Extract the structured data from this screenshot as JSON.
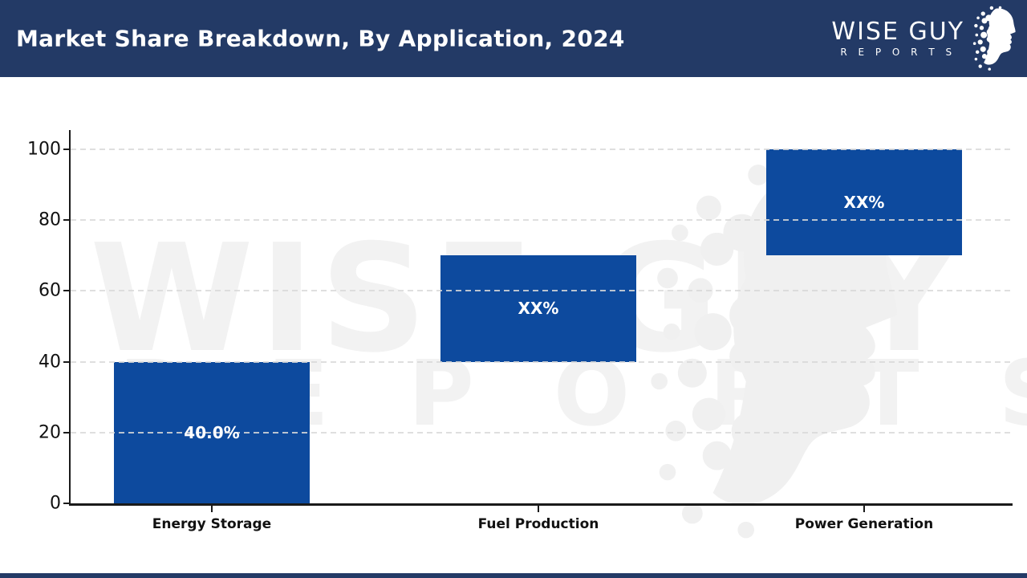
{
  "header": {
    "title": "Market Share Breakdown, By Application, 2024",
    "logo": {
      "brand_line1": "WISE GUY",
      "brand_line2": "R E P O R T S"
    }
  },
  "watermark": {
    "line1": "WISE GUY",
    "line2": "R E P O R T S"
  },
  "chart_data": {
    "type": "bar",
    "subtype": "stacked-waterfall",
    "title": "Market Share Breakdown, By Application, 2024",
    "categories": [
      "Energy Storage",
      "Fuel Production",
      "Power Generation"
    ],
    "series": [
      {
        "name": "Market Share",
        "segments": [
          {
            "category": "Energy Storage",
            "start": 0,
            "end": 40,
            "label": "40.0%"
          },
          {
            "category": "Fuel Production",
            "start": 40,
            "end": 70,
            "label": "XX%"
          },
          {
            "category": "Power Generation",
            "start": 70,
            "end": 100,
            "label": "XX%"
          }
        ]
      }
    ],
    "yticks": [
      0,
      20,
      40,
      60,
      80,
      100
    ],
    "ylim": [
      0,
      105
    ],
    "xlabel": "",
    "ylabel": "",
    "grid": "horizontal-dashed",
    "legend": "none"
  },
  "colors": {
    "header_bg": "#233A66",
    "footer_bg": "#233A66",
    "title_text": "#FFFFFF",
    "bar_fill": "#0D4A9E",
    "bar_label": "#FFFFFF",
    "grid_line": "#D9D9D9",
    "axis_line": "#1A1A1A",
    "tick_text": "#111111",
    "watermark": "#F2F2F2"
  }
}
